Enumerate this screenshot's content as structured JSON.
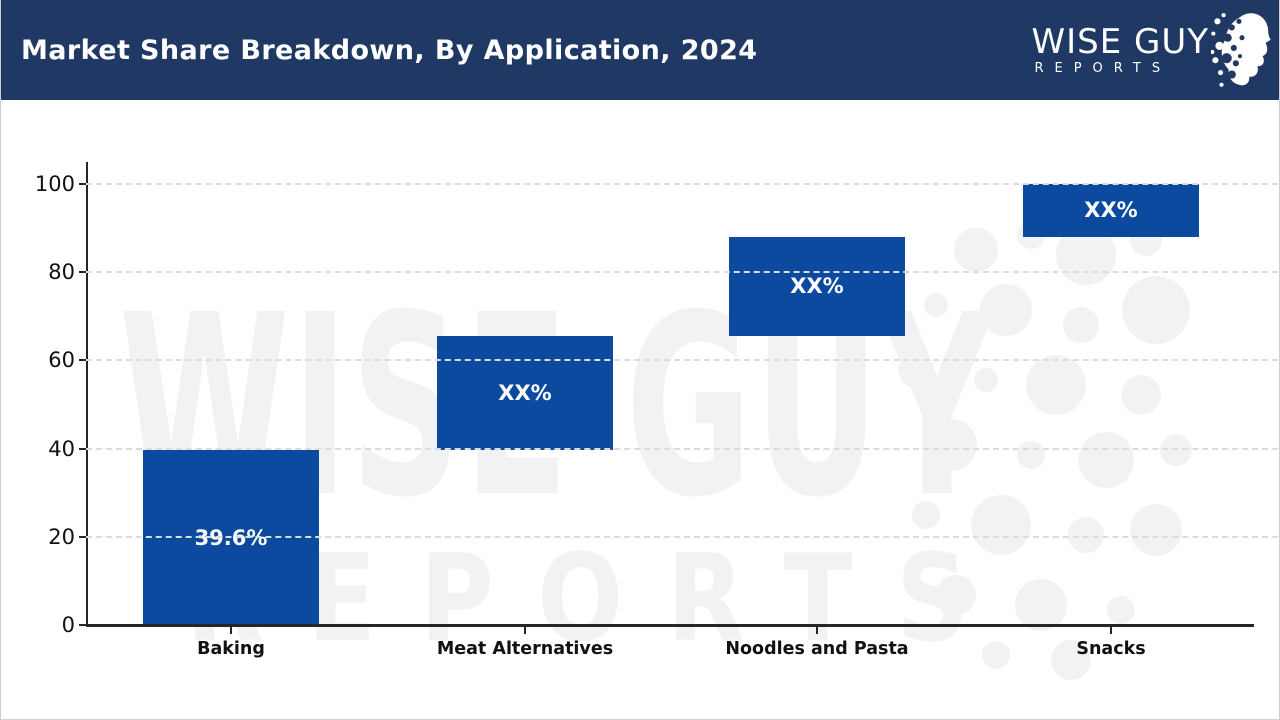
{
  "header": {
    "logo": {
      "line1": "WISE GUY",
      "line2": "REPORTS"
    }
  },
  "watermark": {
    "line1": "WISE GUY",
    "line2": "REPORTS"
  },
  "chart_data": {
    "type": "bar",
    "subtype": "floating-waterfall",
    "title": "Market Share Breakdown, By Application, 2024",
    "categories": [
      "Baking",
      "Meat Alternatives",
      "Noodles and Pasta",
      "Snacks"
    ],
    "segments": [
      {
        "category": "Baking",
        "start": 0,
        "end": 39.6,
        "label": "39.6%"
      },
      {
        "category": "Meat Alternatives",
        "start": 39.6,
        "end": 65.6,
        "label": "XX%"
      },
      {
        "category": "Noodles and Pasta",
        "start": 65.6,
        "end": 88.0,
        "label": "XX%"
      },
      {
        "category": "Snacks",
        "start": 88.0,
        "end": 100,
        "label": "XX%"
      }
    ],
    "xlabel": "",
    "ylabel": "",
    "yticks": [
      0,
      20,
      40,
      60,
      80,
      100
    ],
    "ylim": [
      0,
      105
    ],
    "grid": "horizontal-dashed",
    "legend": "none",
    "bar_color": "#0b4a9e",
    "value_label_color": "#ffffff",
    "header_bg_color": "#1f3864"
  }
}
